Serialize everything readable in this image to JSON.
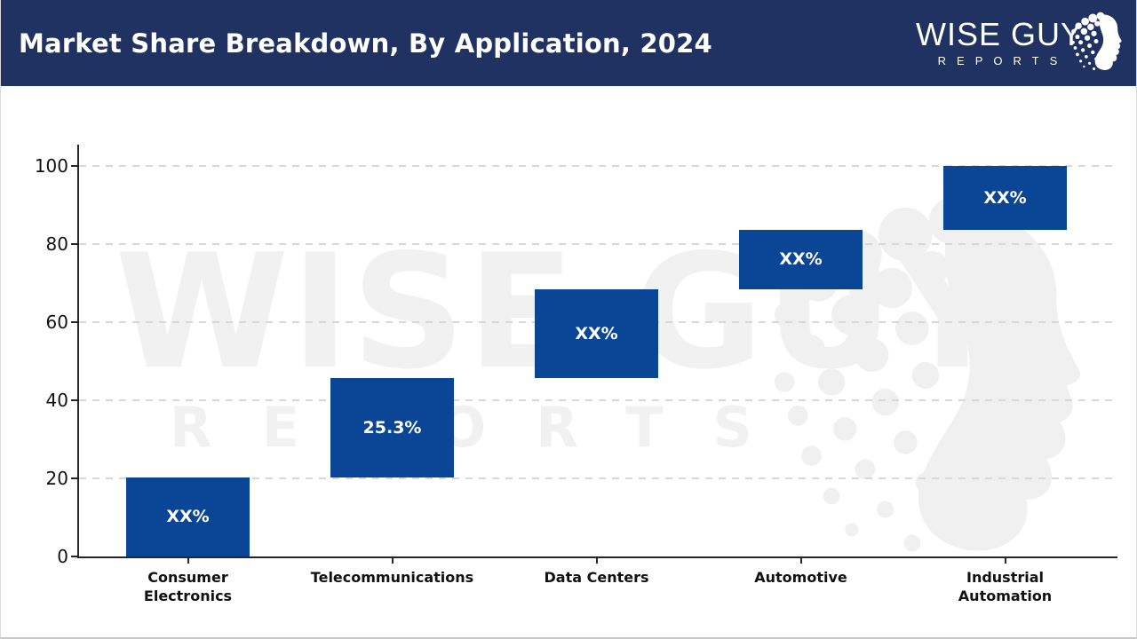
{
  "header": {
    "title": "Market Share Breakdown, By Application, 2024",
    "logo": {
      "primary": "WISE GUY",
      "secondary": "REPORTS",
      "icon": "dotted-head-profile-icon"
    }
  },
  "watermark": {
    "primary": "WISE GUY",
    "secondary": "REPORTS",
    "icon": "dotted-head-profile-icon"
  },
  "chart_data": {
    "type": "bar",
    "subtype": "waterfall",
    "title": "Market Share Breakdown, By Application, 2024",
    "categories": [
      "Consumer Electronics",
      "Telecommunications",
      "Data Centers",
      "Automotive",
      "Industrial Automation"
    ],
    "segments": [
      {
        "category": "Consumer Electronics",
        "start": 0,
        "end": 20.3,
        "value_est": 20.3,
        "label": "XX%"
      },
      {
        "category": "Telecommunications",
        "start": 20.3,
        "end": 45.6,
        "value_est": 25.3,
        "label": "25.3%"
      },
      {
        "category": "Data Centers",
        "start": 45.6,
        "end": 68.5,
        "value_est": 22.9,
        "label": "XX%"
      },
      {
        "category": "Automotive",
        "start": 68.5,
        "end": 83.6,
        "value_est": 15.1,
        "label": "XX%"
      },
      {
        "category": "Industrial Automation",
        "start": 83.6,
        "end": 100,
        "value_est": 16.4,
        "label": "XX%"
      }
    ],
    "xlabel": "",
    "ylabel": "",
    "ylim": [
      0,
      100
    ],
    "yticks": [
      0,
      20,
      40,
      60,
      80,
      100
    ],
    "grid": "horizontal-dashed",
    "legend": "none",
    "colors": {
      "bar": "#0b4596",
      "bar_label": "#ffffff",
      "grid": "#d8d8d8",
      "axis": "#262626",
      "header_bg": "#203261",
      "watermark": "#f0f0f0"
    }
  }
}
